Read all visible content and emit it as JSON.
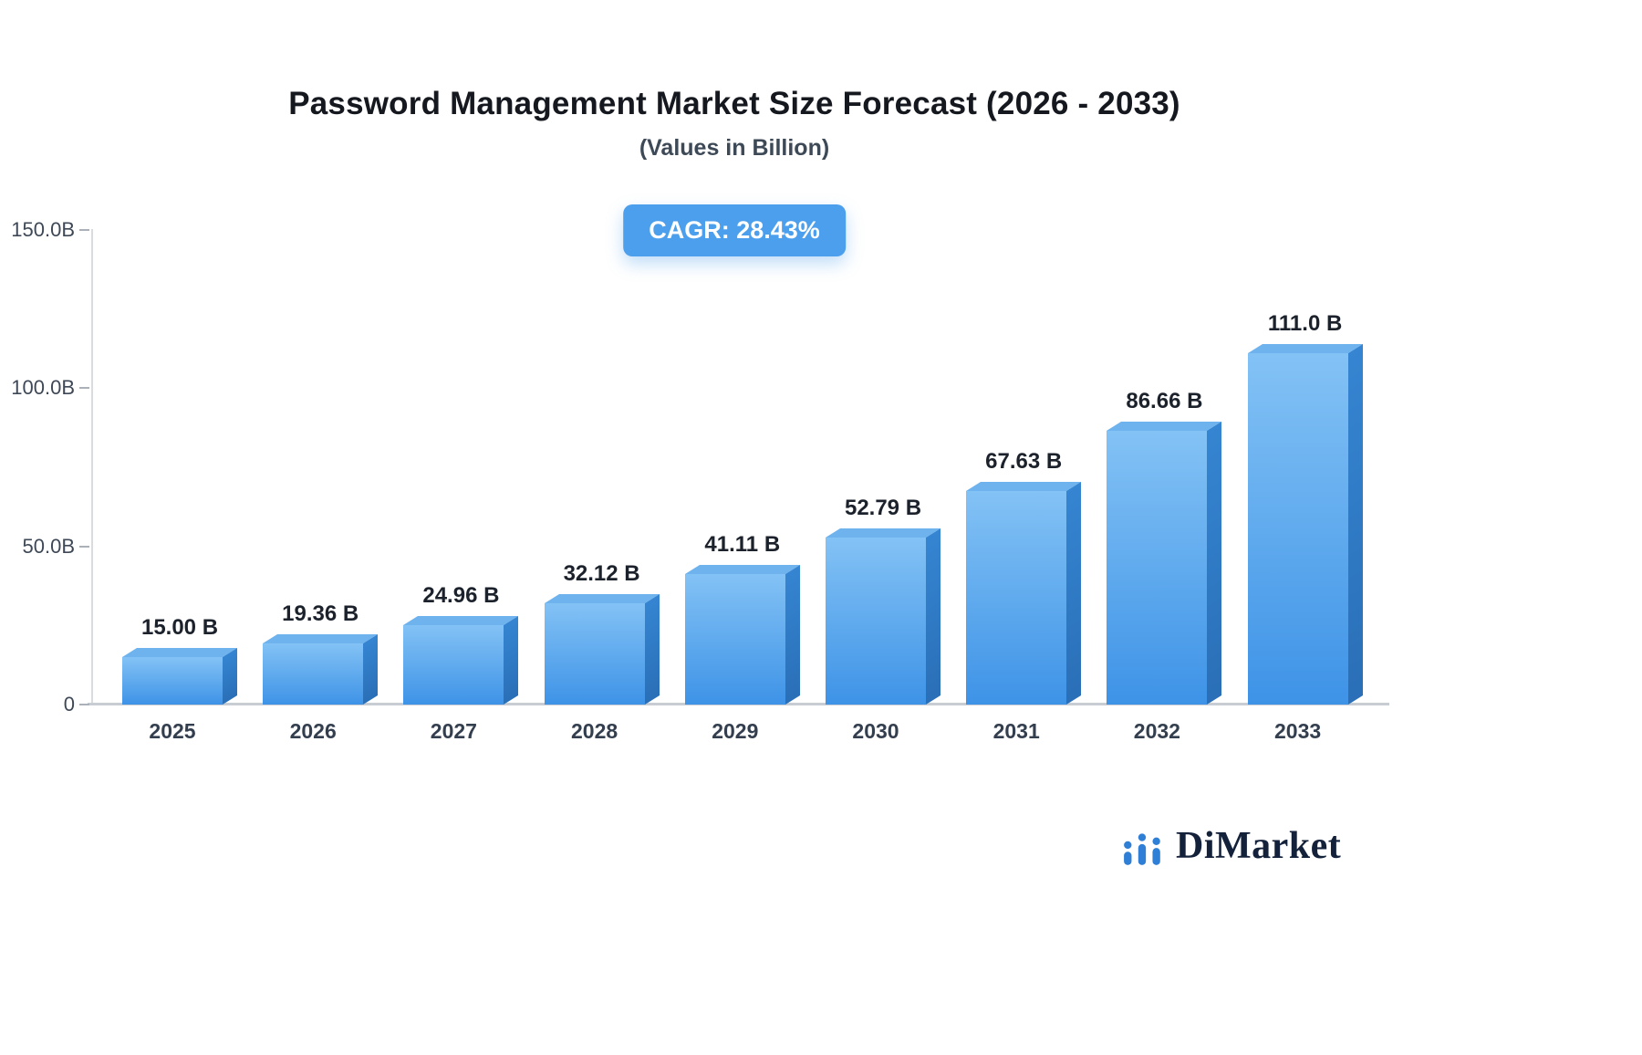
{
  "header": {
    "title": "Password Management Market Size Forecast (2026 - 2033)",
    "subtitle": "(Values in Billion)",
    "cagr_badge": "CAGR: 28.43%"
  },
  "chart_data": {
    "type": "bar",
    "title": "Password Management Market Size Forecast (2026 - 2033)",
    "subtitle": "(Values in Billion)",
    "cagr_text": "CAGR: 28.43%",
    "cagr_value_pct": 28.43,
    "categories": [
      "2025",
      "2026",
      "2027",
      "2028",
      "2029",
      "2030",
      "2031",
      "2032",
      "2033"
    ],
    "values": [
      15.0,
      19.36,
      24.96,
      32.12,
      41.11,
      52.79,
      67.63,
      86.66,
      111.0
    ],
    "value_labels": [
      "15.00 B",
      "19.36 B",
      "24.96 B",
      "32.12 B",
      "41.11 B",
      "52.79 B",
      "67.63 B",
      "86.66 B",
      "111.0 B"
    ],
    "unit_suffix": "B",
    "xlabel": "",
    "ylabel": "",
    "ylim": [
      0,
      150
    ],
    "yticks": [
      {
        "value": 150,
        "label": "150.0B"
      },
      {
        "value": 100,
        "label": "100.0B"
      },
      {
        "value": 50,
        "label": "50.0B"
      },
      {
        "value": 0,
        "label": "0"
      }
    ],
    "grid": false,
    "legend": false,
    "bar_style": "3d-extruded"
  },
  "colors": {
    "bar_front_top": "#83c2f5",
    "bar_front_bottom": "#3e93e7",
    "bar_side": "#2c77c2",
    "bar_top_face": "#6fb3ee",
    "badge_bg": "#4b9fec",
    "badge_text": "#ffffff",
    "axis_line": "#d8dcdf",
    "baseline": "#c8cdd3",
    "label_text": "#1c222c"
  },
  "branding": {
    "logo_text": "DiMarket",
    "logo_icon": "bar-chart-dots-icon",
    "logo_text_color": "#14213a",
    "logo_icon_color": "#2f7fd6"
  }
}
